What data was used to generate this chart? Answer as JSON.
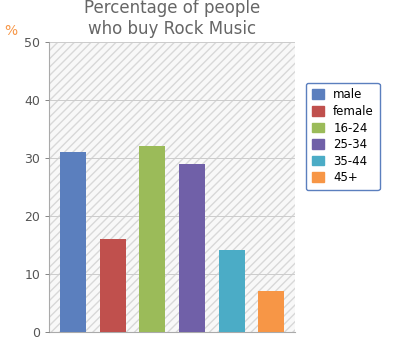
{
  "title": "Percentage of people\nwho buy Rock Music",
  "ylabel": "%",
  "ylim": [
    0,
    50
  ],
  "yticks": [
    0,
    10,
    20,
    30,
    40,
    50
  ],
  "categories": [
    "male",
    "female",
    "16-24",
    "25-34",
    "35-44",
    "45+"
  ],
  "values": [
    31,
    16,
    32,
    29,
    14,
    7
  ],
  "colors": [
    "#5B7FBE",
    "#C0504D",
    "#9BBB59",
    "#7060A8",
    "#4BACC6",
    "#F79646"
  ],
  "legend_labels": [
    "male",
    "female",
    "16-24",
    "25-34",
    "35-44",
    "45+"
  ],
  "title_fontsize": 12,
  "title_color": "#666666",
  "tick_fontsize": 9,
  "ylabel_fontsize": 10,
  "ylabel_color": "#F79646",
  "bar_width": 0.65,
  "grid_color": "#cccccc",
  "background_color": "#ffffff",
  "hatch_color": "#d8d8d8",
  "legend_edge_color": "#5B7FBE",
  "legend_fontsize": 8.5,
  "spine_color": "#aaaaaa"
}
